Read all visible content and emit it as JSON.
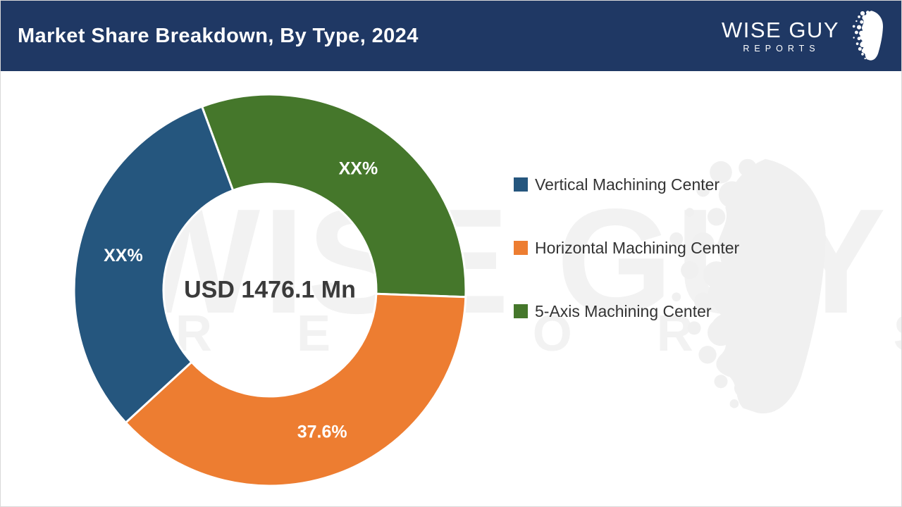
{
  "header": {
    "title": "Market Share Breakdown, By Type, 2024",
    "bg_color": "#1f3864",
    "logo": {
      "line1": "WISE GUY",
      "line2": "REPORTS",
      "face_icon": "dotted-face-profile"
    }
  },
  "watermark": {
    "line1": "WISE GUY",
    "line2": "R E P O R T S"
  },
  "chart_data": {
    "type": "pie",
    "subtype": "donut",
    "title": "Market Share Breakdown, By Type, 2024",
    "center_label": "USD 1476.1 Mn",
    "start_angle_deg": -20.3,
    "inner_radius_frac": 0.543,
    "legend_position": "right",
    "slices": [
      {
        "label": "5-Axis Machining Center",
        "value_pct": 31.2,
        "display_label": "XX%",
        "color": "#45772b"
      },
      {
        "label": "Horizontal Machining Center",
        "value_pct": 37.6,
        "display_label": "37.6%",
        "color": "#ed7d31"
      },
      {
        "label": "Vertical Machining Center",
        "value_pct": 31.2,
        "display_label": "XX%",
        "color": "#25567e"
      }
    ]
  },
  "legend": {
    "items": [
      {
        "label": "Vertical Machining Center",
        "color": "#25567e"
      },
      {
        "label": "Horizontal Machining Center",
        "color": "#ed7d31"
      },
      {
        "label": "5-Axis Machining Center",
        "color": "#45772b"
      }
    ]
  },
  "colors": {
    "header_bg": "#1f3864",
    "center_text": "#3a3a3a",
    "watermark": "#f2f2f2",
    "page_border": "#d9d9d9"
  }
}
